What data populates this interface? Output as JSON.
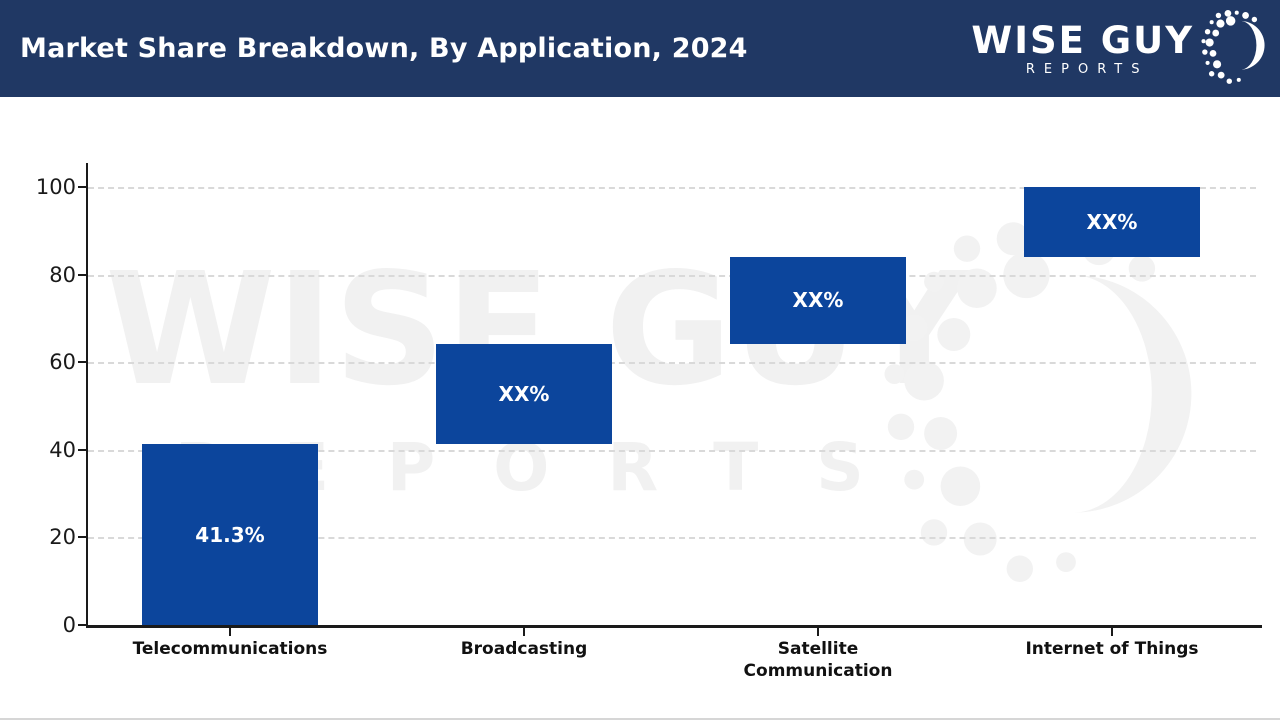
{
  "header": {
    "bg_color": "#203864",
    "title": "Market Share Breakdown, By Application, 2024",
    "logo": {
      "line1": "WISE GUY",
      "line2": "REPORTS"
    }
  },
  "watermark": {
    "line1": "WISE GUY",
    "line2": "REPORTS"
  },
  "chart_data": {
    "type": "bar",
    "subtype": "waterfall",
    "title": "Market Share Breakdown, By Application, 2024",
    "categories": [
      "Telecommunications",
      "Broadcasting",
      "Satellite\nCommunication",
      "Internet of Things"
    ],
    "segments": [
      {
        "category": "Telecommunications",
        "start": 0,
        "end": 41.3,
        "label": "41.3%"
      },
      {
        "category": "Broadcasting",
        "start": 41.3,
        "end": 64.2,
        "label": "XX%"
      },
      {
        "category": "Satellite\nCommunication",
        "start": 64.2,
        "end": 84.1,
        "label": "XX%"
      },
      {
        "category": "Internet of Things",
        "start": 84.1,
        "end": 100,
        "label": "XX%"
      }
    ],
    "ylim": [
      0,
      100
    ],
    "yticks": [
      0,
      20,
      40,
      60,
      80,
      100
    ],
    "bar_color": "#0c459c",
    "bar_label_color": "#ffffff",
    "axis_color": "#1a1a1a",
    "gridline_color": "#d9d9d9",
    "grid": true,
    "legend_position": "none"
  }
}
